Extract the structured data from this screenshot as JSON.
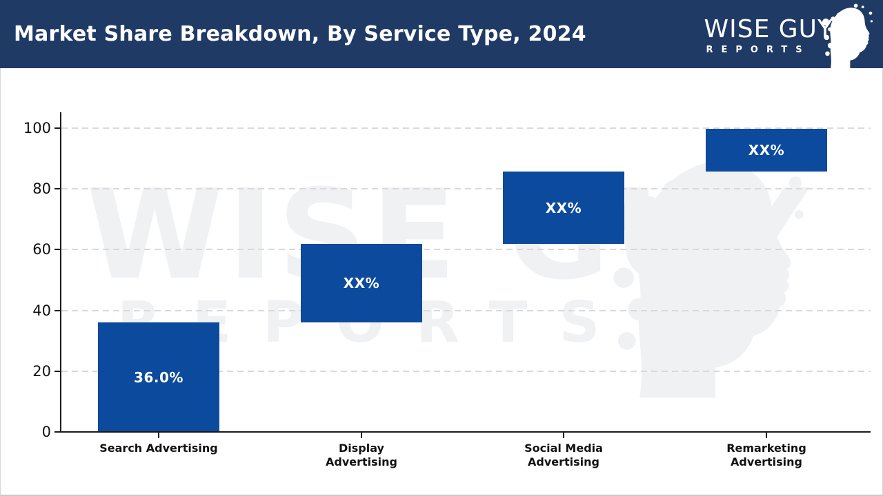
{
  "header": {
    "title": "Market Share Breakdown, By Service Type, 2024",
    "logo": {
      "brand": "WISE GUY",
      "sub": "REPORTS"
    }
  },
  "watermark": {
    "brand": "WISE GUY",
    "sub": "REPORTS"
  },
  "chart_data": {
    "type": "bar",
    "variant": "waterfall",
    "title": "Market Share Breakdown, By Service Type, 2024",
    "categories": [
      "Search Advertising",
      "Display Advertising",
      "Social Media Advertising",
      "Remarketing Advertising"
    ],
    "categories_lines": [
      [
        "Search Advertising"
      ],
      [
        "Display",
        "Advertising"
      ],
      [
        "Social Media",
        "Advertising"
      ],
      [
        "Remarketing",
        "Advertising"
      ]
    ],
    "segments": [
      [
        0,
        36.0
      ],
      [
        36.0,
        61.9
      ],
      [
        61.9,
        85.7
      ],
      [
        85.7,
        99.8
      ]
    ],
    "values": [
      36.0,
      25.9,
      23.8,
      14.1
    ],
    "bar_labels": [
      "36.0%",
      "XX%",
      "XX%",
      "XX%"
    ],
    "yticks": [
      0,
      20,
      40,
      60,
      80,
      100
    ],
    "ylim": [
      0,
      105
    ],
    "xlabel": "",
    "ylabel": "",
    "legend": "none",
    "grid": "horizontal-dashed",
    "colors": {
      "bar": "#0c4a9e",
      "grid": "#d9d9d9",
      "axis": "#1a1a1a",
      "header_bg": "#203a66",
      "value_label": "#ffffff",
      "watermark": "#f0f1f3"
    }
  }
}
